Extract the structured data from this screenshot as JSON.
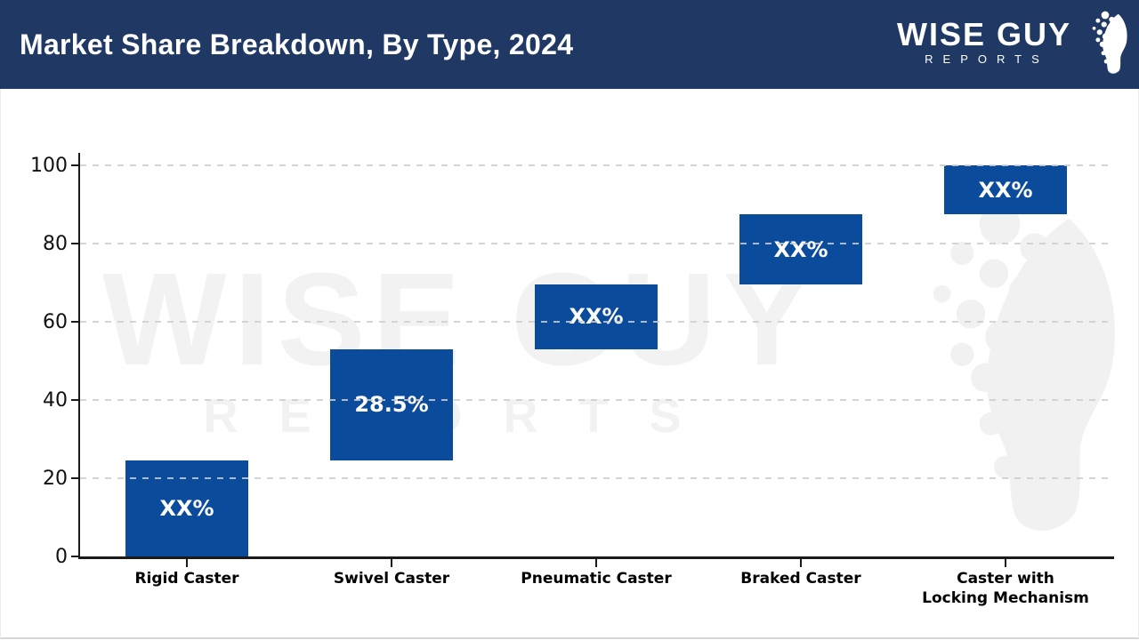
{
  "header": {
    "title": "Market Share Breakdown, By Type, 2024",
    "bg_color": "#1f3864",
    "logo": {
      "line1": "WISE GUY",
      "line2": "REPORTS"
    }
  },
  "watermark": {
    "line1": "WISE GUY",
    "line2": "REPORTS"
  },
  "chart_data": {
    "type": "bar",
    "subtype": "waterfall-step",
    "title": "Market Share Breakdown, By Type, 2024",
    "xlabel": "",
    "ylabel": "",
    "ylim": [
      0,
      100
    ],
    "yticks": [
      0,
      20,
      40,
      60,
      80,
      100
    ],
    "grid": "horizontal-dashed",
    "legend": "none",
    "bar_color": "#0b4b9b",
    "bar_label_color": "#ffffff",
    "categories": [
      "Rigid Caster",
      "Swivel Caster",
      "Pneumatic Caster",
      "Braked Caster",
      "Caster with Locking Mechanism"
    ],
    "x_tick_lines": [
      [
        "Rigid Caster"
      ],
      [
        "Swivel Caster"
      ],
      [
        "Pneumatic Caster"
      ],
      [
        "Braked Caster"
      ],
      [
        "Caster with",
        "Locking Mechanism"
      ]
    ],
    "series": [
      {
        "name": "Market Share (%)",
        "segments": [
          {
            "category": "Rigid Caster",
            "start": 0,
            "end": 24.5,
            "value": 24.5,
            "label": "XX%"
          },
          {
            "category": "Swivel Caster",
            "start": 24.5,
            "end": 53,
            "value": 28.5,
            "label": "28.5%"
          },
          {
            "category": "Pneumatic Caster",
            "start": 53,
            "end": 69.5,
            "value": 16.5,
            "label": "XX%"
          },
          {
            "category": "Braked Caster",
            "start": 69.5,
            "end": 87.5,
            "value": 18,
            "label": "XX%"
          },
          {
            "category": "Caster with Locking Mechanism",
            "start": 87.5,
            "end": 100,
            "value": 12.5,
            "label": "XX%"
          }
        ]
      }
    ]
  }
}
